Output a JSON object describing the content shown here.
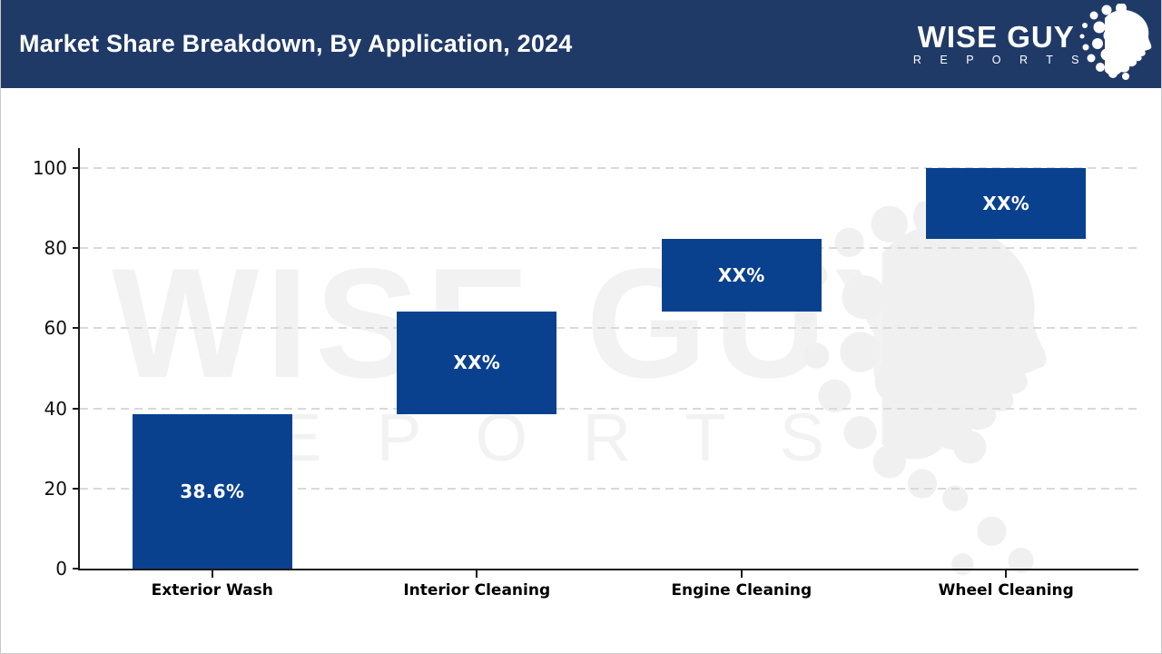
{
  "header": {
    "title": "Market Share Breakdown, By Application, 2024",
    "logo": {
      "line1": "WISE GUY",
      "line2": "R E P O R T S"
    }
  },
  "watermark": {
    "line1": "WISE GUY",
    "line2": "R E P O R T S"
  },
  "colors": {
    "header_bg": "#203a68",
    "bar": "#0a418f",
    "bar_label": "#ffffff",
    "grid": "#d9d9d9",
    "axis": "#1a1a1a",
    "tick_label": "#111111",
    "watermark": "#f2f2f2",
    "page_border": "#c9c9c9"
  },
  "chart_data": {
    "type": "bar",
    "subtype": "waterfall-floating-bars",
    "title": "Market Share Breakdown, By Application, 2024",
    "categories": [
      "Exterior Wash",
      "Interior Cleaning",
      "Engine Cleaning",
      "Wheel Cleaning"
    ],
    "series": [
      {
        "name": "Market Share %",
        "segments": [
          {
            "category": "Exterior Wash",
            "start": 0,
            "end": 38.6,
            "label": "38.6%"
          },
          {
            "category": "Interior Cleaning",
            "start": 38.6,
            "end": 64.2,
            "label": "XX%"
          },
          {
            "category": "Engine Cleaning",
            "start": 64.2,
            "end": 82.3,
            "label": "XX%"
          },
          {
            "category": "Wheel Cleaning",
            "start": 82.3,
            "end": 100,
            "label": "XX%"
          }
        ]
      }
    ],
    "xlabel": "",
    "ylabel": "",
    "ylim": [
      0,
      100
    ],
    "yticks": [
      0,
      20,
      40,
      60,
      80,
      100
    ],
    "grid": "horizontal-dashed",
    "legend": "none"
  }
}
